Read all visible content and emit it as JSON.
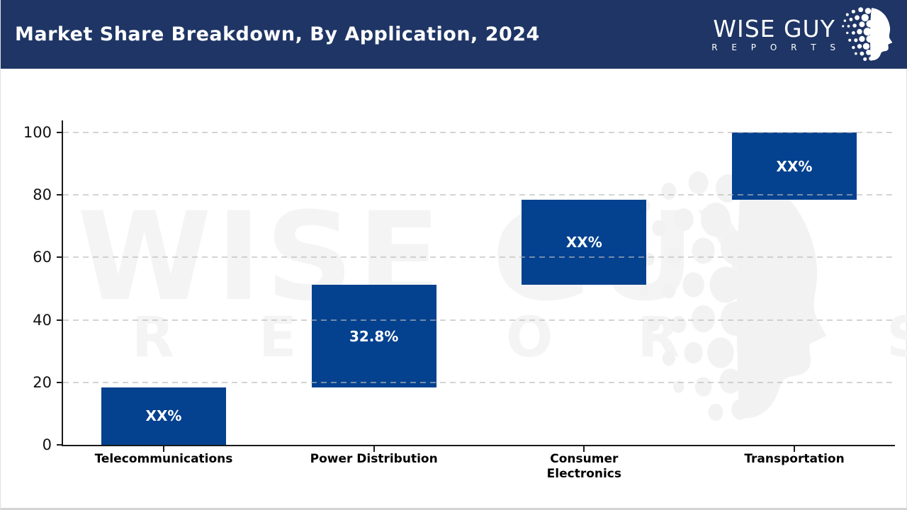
{
  "header": {
    "title": "Market Share Breakdown, By Application, 2024",
    "logo": {
      "line1": "WISE GUY",
      "line2": "R E P O R T S"
    }
  },
  "watermark": {
    "line1": "WISE GUY",
    "line2": "R E P O R T S"
  },
  "chart_data": {
    "type": "bar",
    "subtype": "waterfall",
    "title": "Market Share Breakdown, By Application, 2024",
    "categories": [
      "Telecommunications",
      "Power Distribution",
      "Consumer Electronics",
      "Transportation"
    ],
    "category_lines": [
      [
        "Telecommunications"
      ],
      [
        "Power Distribution"
      ],
      [
        "Consumer",
        "Electronics"
      ],
      [
        "Transportation"
      ]
    ],
    "segments": [
      {
        "category": "Telecommunications",
        "start": 0,
        "end": 18.4,
        "label": "XX%"
      },
      {
        "category": "Power Distribution",
        "start": 18.4,
        "end": 51.2,
        "label": "32.8%"
      },
      {
        "category": "Consumer Electronics",
        "start": 51.2,
        "end": 78.4,
        "label": "XX%"
      },
      {
        "category": "Transportation",
        "start": 78.4,
        "end": 100,
        "label": "XX%"
      }
    ],
    "ylim": [
      0,
      100
    ],
    "yticks": [
      0,
      20,
      40,
      60,
      80,
      100
    ],
    "grid": "horizontal dashed",
    "legend": "none",
    "bar_color": "#04418f",
    "bar_label_color": "#ffffff"
  },
  "colors": {
    "header_bg": "#1e3565",
    "bar": "#04418f",
    "axis": "#1a1a1a",
    "grid": "#d9d9d9",
    "watermark": "#f4f4f4"
  }
}
